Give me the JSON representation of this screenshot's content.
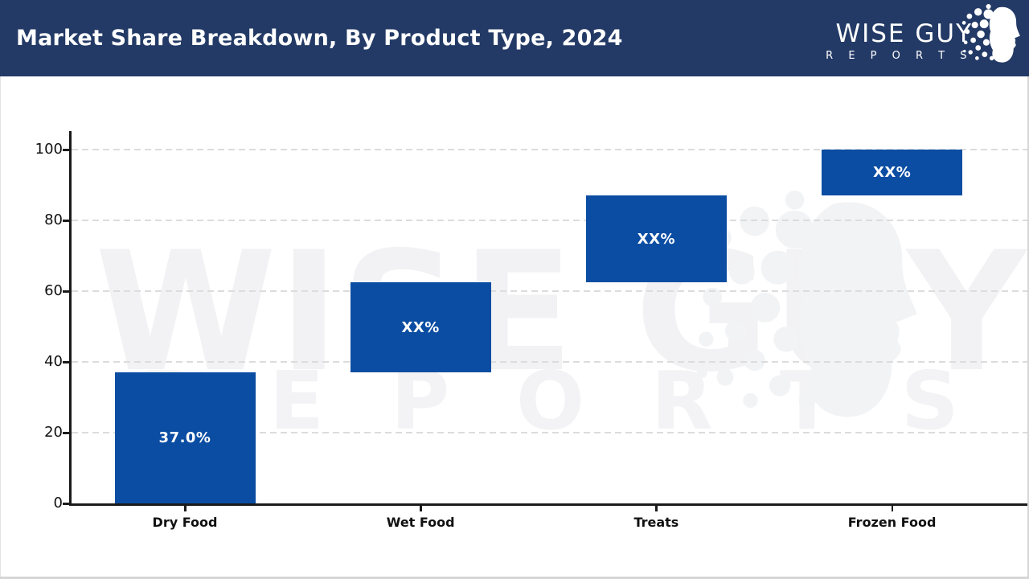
{
  "header": {
    "title": "Market Share Breakdown, By Product Type, 2024",
    "bg_color": "#233A66",
    "logo": {
      "line1": "WISE GUY",
      "line2": "R E P O R T S",
      "head_icon": "dotted-head-profile-icon"
    }
  },
  "watermark": {
    "line1": "WISE GUY",
    "line2": "R E P O R T S",
    "head_icon": "dotted-head-profile-icon"
  },
  "chart_data": {
    "type": "bar",
    "subtype": "waterfall",
    "title": "Market Share Breakdown, By Product Type, 2024",
    "xlabel": "",
    "ylabel": "",
    "categories": [
      "Dry Food",
      "Wet Food",
      "Treats",
      "Frozen Food"
    ],
    "bars": [
      {
        "category": "Dry Food",
        "start": 0,
        "end": 37,
        "label": "37.0%"
      },
      {
        "category": "Wet Food",
        "start": 37,
        "end": 62.5,
        "label": "XX%"
      },
      {
        "category": "Treats",
        "start": 62.5,
        "end": 87,
        "label": "XX%"
      },
      {
        "category": "Frozen Food",
        "start": 87,
        "end": 100,
        "label": "XX%"
      }
    ],
    "y_ticks": [
      0,
      20,
      40,
      60,
      80,
      100
    ],
    "ylim": [
      0,
      105
    ],
    "bar_color": "#0B4DA2",
    "grid": "horizontal-dashed",
    "legend_position": "none"
  }
}
